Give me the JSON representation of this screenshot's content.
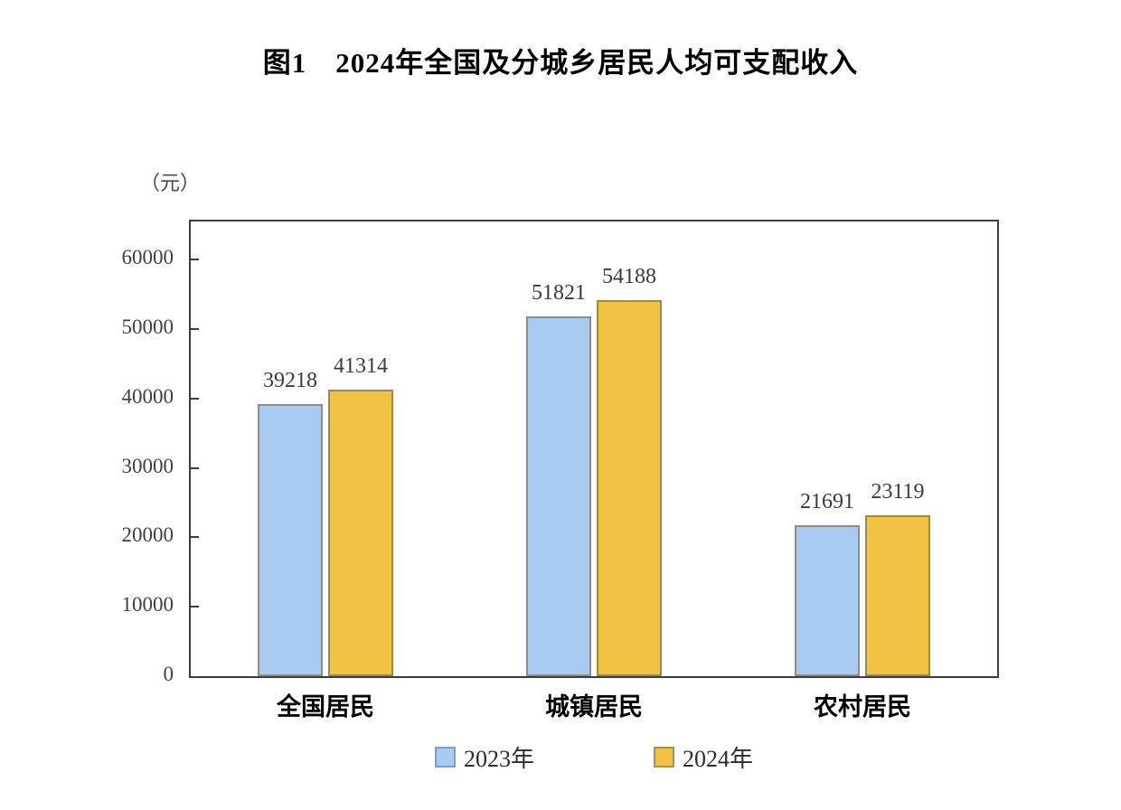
{
  "title": "图1　2024年全国及分城乡居民人均可支配收入",
  "unit_label": "（元）",
  "colors": {
    "series_2023_fill": "#A9CBF2",
    "series_2023_border": "#8C8C8C",
    "series_2024_fill": "#F2C242",
    "series_2024_border": "#9C8A4A",
    "axis": "#3C3C3C",
    "background": "#FFFFFF"
  },
  "chart_data": {
    "type": "bar",
    "title": "图1　2024年全国及分城乡居民人均可支配收入",
    "ylabel": "（元）",
    "xlabel": "",
    "categories": [
      "全国居民",
      "城镇居民",
      "农村居民"
    ],
    "series": [
      {
        "name": "2023年",
        "color": "#A9CBF2",
        "border_color": "#8C8C8C",
        "values": [
          39218,
          51821,
          21691
        ]
      },
      {
        "name": "2024年",
        "color": "#F2C242",
        "border_color": "#9C8A4A",
        "values": [
          41314,
          54188,
          23119
        ]
      }
    ],
    "value_labels": [
      "39218",
      "41314",
      "51821",
      "54188",
      "21691",
      "23119"
    ],
    "yticks": [
      0,
      10000,
      20000,
      30000,
      40000,
      50000,
      60000
    ],
    "ylim": [
      0,
      65500
    ],
    "grid": false,
    "legend_position": "bottom",
    "bar_style": "grouped"
  }
}
